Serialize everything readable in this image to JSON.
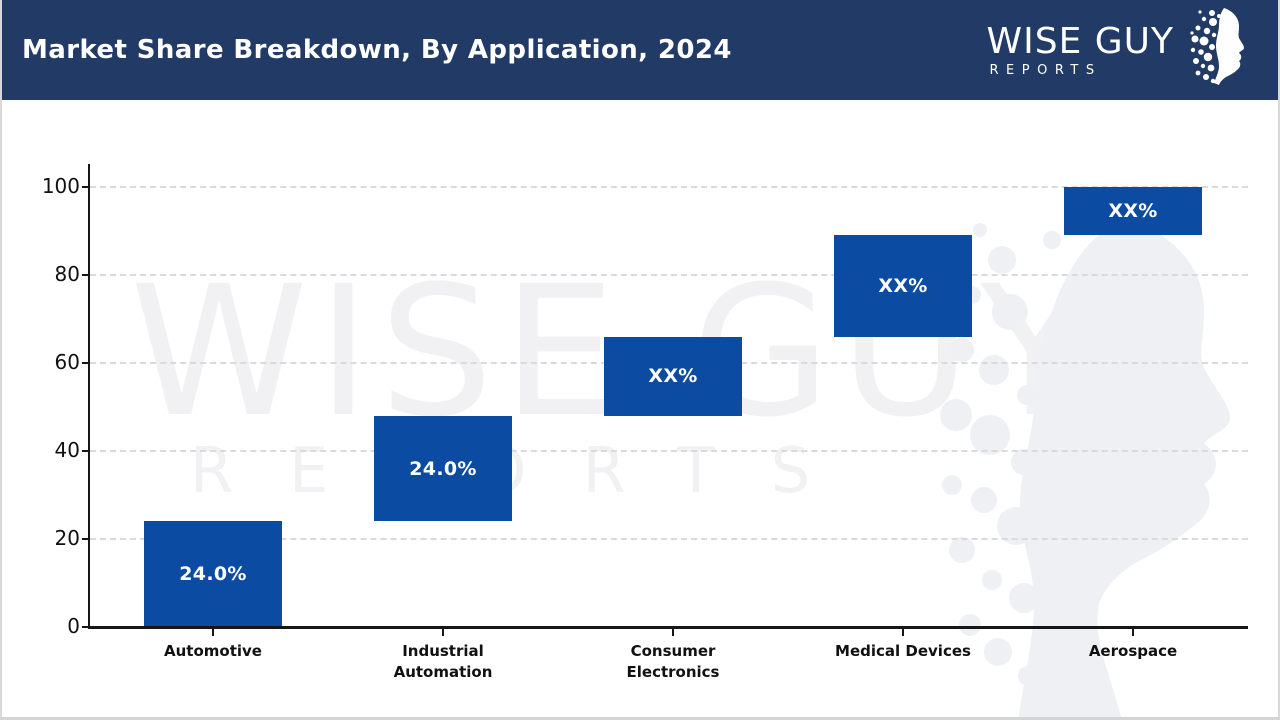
{
  "header": {
    "title": "Market Share Breakdown, By Application, 2024",
    "background_color": "#223a66",
    "logo": {
      "line1": "WISE GUY",
      "line2": "REPORTS"
    }
  },
  "watermark": {
    "line1": "WISE GUY",
    "line2": "REPORTS"
  },
  "chart_data": {
    "type": "bar",
    "variant": "waterfall",
    "title": "Market Share Breakdown, By Application, 2024",
    "xlabel": "",
    "ylabel": "",
    "categories": [
      "Automotive",
      "Industrial Automation",
      "Consumer Electronics",
      "Medical Devices",
      "Aerospace"
    ],
    "segments": [
      {
        "category": "Automotive",
        "start": 0,
        "end": 24,
        "label": "24.0%"
      },
      {
        "category": "Industrial Automation",
        "start": 24,
        "end": 48,
        "label": "24.0%"
      },
      {
        "category": "Consumer Electronics",
        "start": 48,
        "end": 66,
        "label": "XX%"
      },
      {
        "category": "Medical Devices",
        "start": 66,
        "end": 89,
        "label": "XX%"
      },
      {
        "category": "Aerospace",
        "start": 89,
        "end": 100,
        "label": "XX%"
      }
    ],
    "yticks": [
      0,
      20,
      40,
      60,
      80,
      100
    ],
    "ylim": [
      0,
      105
    ],
    "bar_color": "#0b4ba1",
    "grid": {
      "axis": "y",
      "style": "dashed",
      "color": "#dadada"
    },
    "legend": "none"
  }
}
